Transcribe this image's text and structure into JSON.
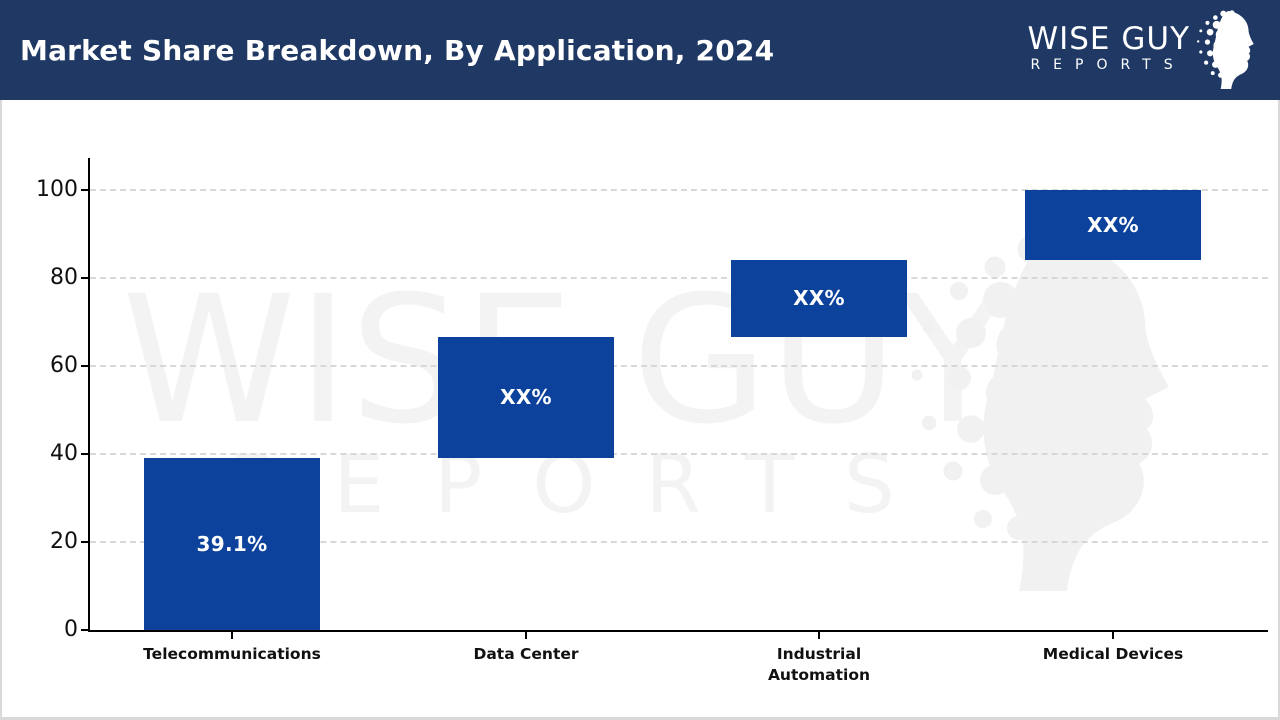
{
  "header": {
    "title": "Market Share Breakdown, By Application, 2024",
    "logo": {
      "line1": "WISE GUY",
      "line2": "REPORTS",
      "face_icon": "dotted-head-profile"
    }
  },
  "watermark": {
    "line1": "WISE GUY",
    "line2": "REPORTS"
  },
  "chart_data": {
    "type": "bar",
    "subtype": "floating-segment-waterfall",
    "title": "Market Share Breakdown, By Application, 2024",
    "categories": [
      "Telecommunications",
      "Data Center",
      "Industrial\nAutomation",
      "Medical Devices"
    ],
    "series": [
      {
        "name": "Market share (%)",
        "segments": [
          {
            "category": "Telecommunications",
            "start": 0,
            "end": 39.1,
            "label": "39.1%"
          },
          {
            "category": "Data Center",
            "start": 39.1,
            "end": 66.6,
            "label": "XX%"
          },
          {
            "category": "Industrial Automation",
            "start": 66.6,
            "end": 84.1,
            "label": "XX%"
          },
          {
            "category": "Medical Devices",
            "start": 84.1,
            "end": 100,
            "label": "XX%"
          }
        ]
      }
    ],
    "xlabel": "",
    "ylabel": "",
    "ylim": [
      0,
      100
    ],
    "yticks": [
      0,
      20,
      40,
      60,
      80,
      100
    ],
    "grid": "horizontal-dashed",
    "legend_position": "none",
    "bar_color": "#0c429b"
  },
  "colors": {
    "header_bg": "#1f3864",
    "title_text": "#ffffff",
    "bar_fill": "#0c429b",
    "bar_label_text": "#ffffff",
    "axis": "#000000",
    "tick_label": "#111111",
    "gridline": "#d8d8d8",
    "watermark": "#f3f3f3",
    "frame_border": "#d9d9d9",
    "background": "#ffffff"
  }
}
